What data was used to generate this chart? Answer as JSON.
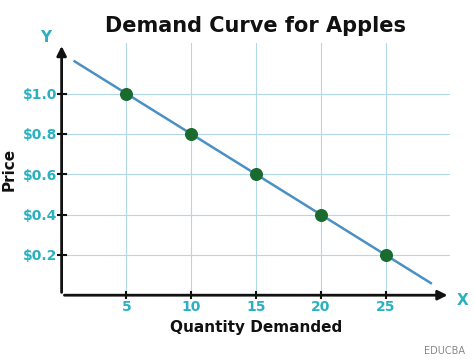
{
  "title": "Demand Curve for Apples",
  "xlabel": "Quantity Demanded",
  "ylabel": "Price",
  "x_label_axis": "X",
  "y_label_axis": "Y",
  "quantities": [
    5,
    10,
    15,
    20,
    25
  ],
  "prices": [
    1.0,
    0.8,
    0.6,
    0.4,
    0.2
  ],
  "line_color": "#4a90c4",
  "dot_color": "#1a6b2e",
  "dot_size": 70,
  "grid_color": "#b0d8e8",
  "axis_color": "#111111",
  "title_fontsize": 15,
  "label_fontsize": 11,
  "tick_fontsize": 10,
  "tick_color": "#2ab0c0",
  "ytick_labels": [
    "$0.2",
    "$0.4",
    "$0.6",
    "$0.8",
    "$1.0"
  ],
  "ytick_values": [
    0.2,
    0.4,
    0.6,
    0.8,
    1.0
  ],
  "xtick_values": [
    5,
    10,
    15,
    20,
    25
  ],
  "xlim": [
    0,
    30
  ],
  "ylim": [
    0,
    1.25
  ],
  "line_x_start": 1.0,
  "line_x_end": 28.5,
  "bg_color": "#ffffff"
}
